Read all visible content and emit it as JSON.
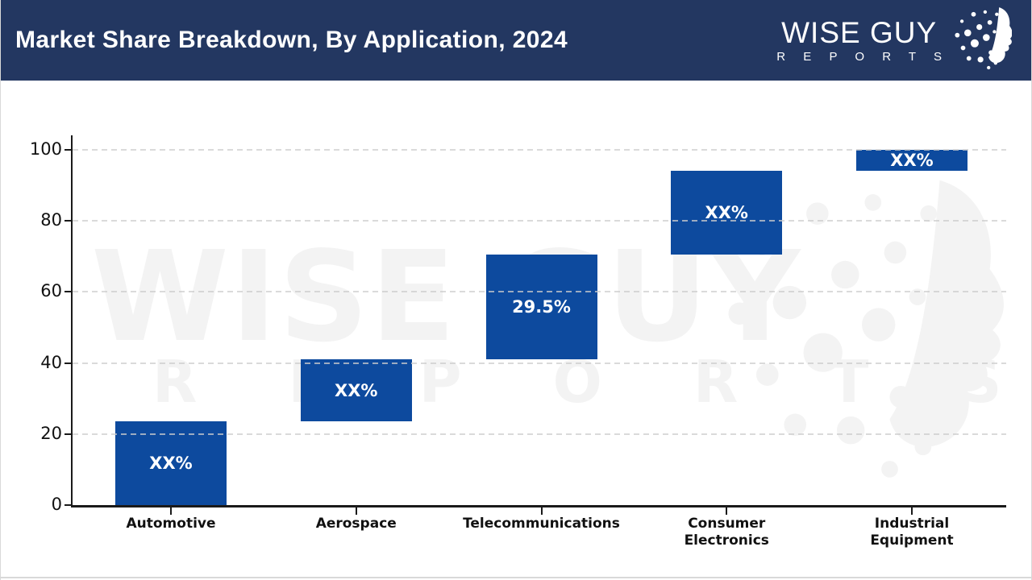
{
  "header": {
    "title": "Market Share Breakdown, By Application, 2024",
    "bg_color": "#233761",
    "logo": {
      "line1": "WISE GUY",
      "line2": "R E P O R T S"
    }
  },
  "watermark": {
    "line1": "WISE GUY",
    "line2": "R E P O R T S"
  },
  "chart_data": {
    "type": "bar",
    "subtype": "waterfall",
    "title": "Market Share Breakdown, By Application, 2024",
    "xlabel": "",
    "ylabel": "",
    "ylim": [
      0,
      100
    ],
    "yticks": [
      "0",
      "20",
      "40",
      "60",
      "80",
      "100"
    ],
    "ytick_values": [
      0,
      20,
      40,
      60,
      80,
      100
    ],
    "grid": true,
    "grid_style": "dashed",
    "bar_color": "#0d4a9e",
    "label_color": "#ffffff",
    "categories": [
      "Automotive",
      "Aerospace",
      "Telecommunications",
      "Consumer Electronics",
      "Industrial Equipment"
    ],
    "bars": [
      {
        "category": "Automotive",
        "label_lines": [
          "Automotive"
        ],
        "start": 0,
        "end": 23.5,
        "value": 23.5,
        "label": "XX%"
      },
      {
        "category": "Aerospace",
        "label_lines": [
          "Aerospace"
        ],
        "start": 23.5,
        "end": 41,
        "value": 17.5,
        "label": "XX%"
      },
      {
        "category": "Telecommunications",
        "label_lines": [
          "Telecommunications"
        ],
        "start": 41,
        "end": 70.5,
        "value": 29.5,
        "label": "29.5%"
      },
      {
        "category": "Consumer Electronics",
        "label_lines": [
          "Consumer",
          "Electronics"
        ],
        "start": 70.5,
        "end": 94,
        "value": 23.5,
        "label": "XX%"
      },
      {
        "category": "Industrial Equipment",
        "label_lines": [
          "Industrial",
          "Equipment"
        ],
        "start": 94,
        "end": 100,
        "value": 6,
        "label": "XX%"
      }
    ]
  }
}
